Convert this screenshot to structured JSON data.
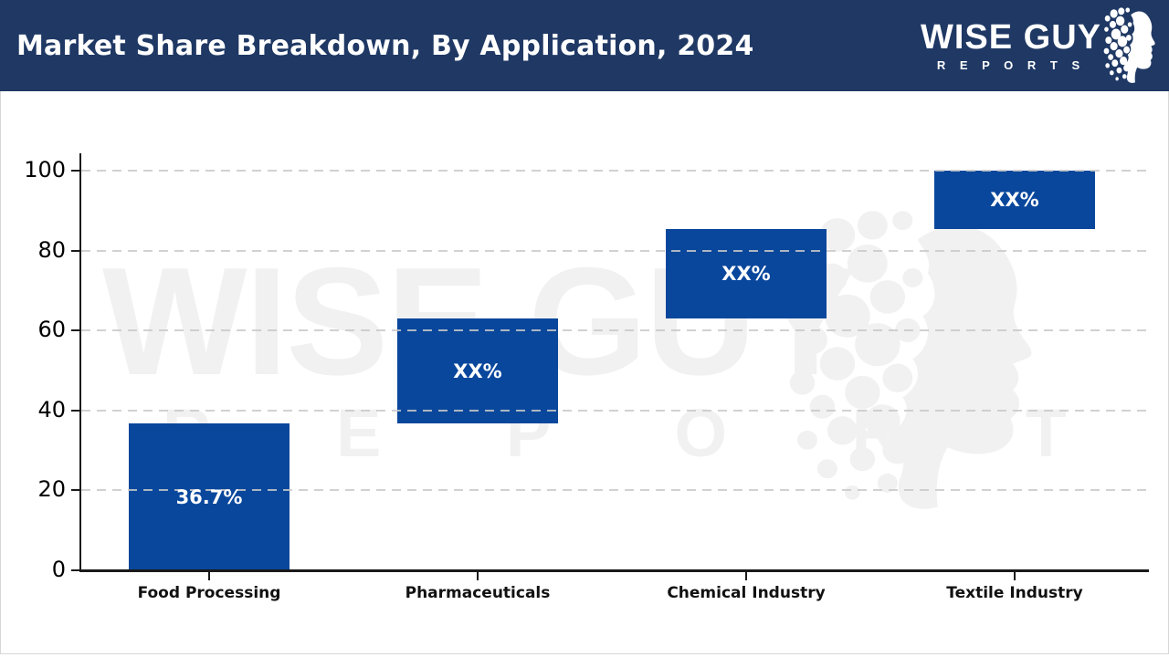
{
  "header": {
    "title": "Market Share Breakdown, By Application, 2024",
    "bg_color": "#1f3864",
    "text_color": "#ffffff",
    "logo": {
      "wordmark": "WISE GUY",
      "subtext": "R E P O R T S"
    }
  },
  "watermark": {
    "wordmark": "WISE GUY",
    "subtext": "R E P O R T S",
    "color": "#f1f1f1"
  },
  "chart_data": {
    "type": "bar",
    "subtype": "floating-waterfall",
    "title": "Market Share Breakdown, By Application, 2024",
    "categories": [
      "Food Processing",
      "Pharmaceuticals",
      "Chemical Industry",
      "Textile Industry"
    ],
    "segments": [
      {
        "category": "Food Processing",
        "start": 0,
        "end": 36.7,
        "label": "36.7%"
      },
      {
        "category": "Pharmaceuticals",
        "start": 36.7,
        "end": 63.0,
        "label": "XX%"
      },
      {
        "category": "Chemical Industry",
        "start": 63.0,
        "end": 85.4,
        "label": "XX%"
      },
      {
        "category": "Textile Industry",
        "start": 85.4,
        "end": 100.0,
        "label": "XX%"
      }
    ],
    "xlabel": "",
    "ylabel": "",
    "ylim": [
      0,
      100
    ],
    "yticks": [
      0,
      20,
      40,
      60,
      80,
      100
    ],
    "grid": "dashed-horizontal",
    "legend": "none",
    "bar_color": "#09479c",
    "bar_label_color": "#ffffff",
    "grid_color": "#c9c9c9",
    "axis_color": "#1a1a1a"
  }
}
